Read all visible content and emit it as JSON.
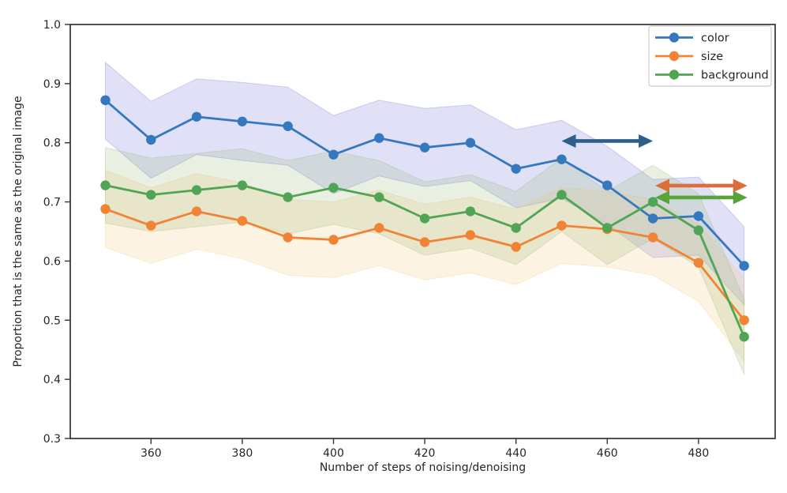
{
  "chart_data": {
    "type": "line",
    "title": "",
    "xlabel": "Number of steps of noising/denoising",
    "ylabel": "Proportion that is the same as the original image",
    "xlim": [
      342.3,
      496.8
    ],
    "ylim": [
      0.3,
      1.0
    ],
    "grid": false,
    "x_ticks": [
      "360",
      "380",
      "400",
      "420",
      "440",
      "460",
      "480"
    ],
    "x_tick_values": [
      360,
      380,
      400,
      420,
      440,
      460,
      480
    ],
    "y_ticks": [
      "0.3",
      "0.4",
      "0.5",
      "0.6",
      "0.7",
      "0.8",
      "0.9",
      "1.0"
    ],
    "y_tick_values": [
      0.3,
      0.4,
      0.5,
      0.6,
      0.7,
      0.8,
      0.9,
      1.0
    ],
    "x": [
      350,
      360,
      370,
      380,
      390,
      400,
      410,
      420,
      430,
      440,
      450,
      460,
      470,
      480,
      490
    ],
    "series": [
      {
        "name": "color",
        "line_color": "#3578be",
        "band_color": "#646bd7",
        "values": [
          0.872,
          0.805,
          0.844,
          0.836,
          0.828,
          0.78,
          0.808,
          0.792,
          0.8,
          0.756,
          0.772,
          0.728,
          0.672,
          0.676,
          0.592
        ],
        "band_upper": [
          0.936,
          0.87,
          0.908,
          0.902,
          0.894,
          0.846,
          0.872,
          0.858,
          0.864,
          0.822,
          0.838,
          0.794,
          0.738,
          0.742,
          0.658
        ],
        "band_lower": [
          0.806,
          0.74,
          0.78,
          0.77,
          0.762,
          0.714,
          0.744,
          0.726,
          0.736,
          0.69,
          0.706,
          0.662,
          0.606,
          0.61,
          0.526
        ]
      },
      {
        "name": "size",
        "line_color": "#f08334",
        "band_color": "#f5c573",
        "values": [
          0.688,
          0.66,
          0.684,
          0.668,
          0.64,
          0.636,
          0.656,
          0.632,
          0.644,
          0.624,
          0.66,
          0.654,
          0.64,
          0.597,
          0.5
        ],
        "band_upper": [
          0.753,
          0.724,
          0.748,
          0.732,
          0.704,
          0.7,
          0.72,
          0.696,
          0.708,
          0.688,
          0.724,
          0.718,
          0.704,
          0.662,
          0.57
        ],
        "band_lower": [
          0.623,
          0.596,
          0.62,
          0.604,
          0.576,
          0.572,
          0.592,
          0.568,
          0.58,
          0.56,
          0.596,
          0.59,
          0.576,
          0.532,
          0.43
        ]
      },
      {
        "name": "background",
        "line_color": "#4fa553",
        "band_color": "#91b46e",
        "values": [
          0.728,
          0.712,
          0.72,
          0.728,
          0.708,
          0.724,
          0.708,
          0.672,
          0.684,
          0.656,
          0.712,
          0.656,
          0.7,
          0.652,
          0.472
        ],
        "band_upper": [
          0.792,
          0.774,
          0.782,
          0.79,
          0.77,
          0.786,
          0.77,
          0.734,
          0.746,
          0.718,
          0.774,
          0.718,
          0.762,
          0.714,
          0.536
        ],
        "band_lower": [
          0.664,
          0.65,
          0.658,
          0.666,
          0.646,
          0.662,
          0.646,
          0.61,
          0.622,
          0.594,
          0.65,
          0.594,
          0.638,
          0.59,
          0.408
        ]
      }
    ],
    "arrows": [
      {
        "series": "color",
        "color": "#2d5f8a",
        "x_start": 450,
        "x_end": 470,
        "y": 0.803,
        "double_headed": true
      },
      {
        "series": "size",
        "color": "#d9703c",
        "x_start": 470.5,
        "x_end": 490.7,
        "y": 0.7275,
        "double_headed": true
      },
      {
        "series": "background",
        "color": "#58a33a",
        "x_start": 470.5,
        "x_end": 490.7,
        "y": 0.7075,
        "double_headed": true
      }
    ],
    "legend": {
      "position": "upper right",
      "entries": [
        "color",
        "size",
        "background"
      ]
    }
  },
  "style_hints": {
    "text_color": "#262626",
    "spine_color": "#333333",
    "band_opacity": 0.2,
    "background": "#ffffff"
  }
}
